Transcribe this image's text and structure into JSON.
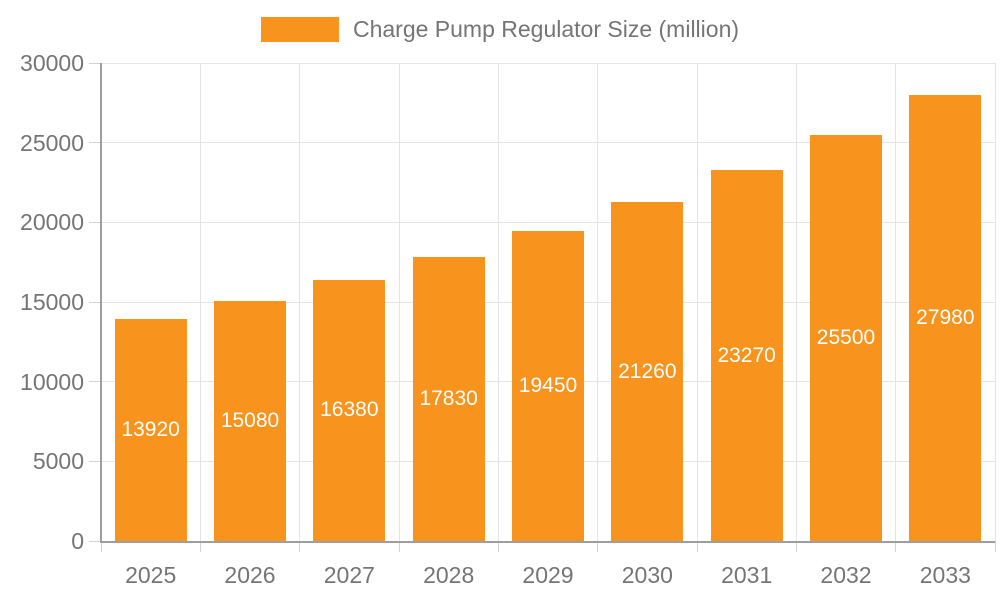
{
  "legend": {
    "label": "Charge Pump Regulator Size (million)"
  },
  "chart_data": {
    "type": "bar",
    "title": "Charge Pump Regulator Size (million)",
    "categories": [
      "2025",
      "2026",
      "2027",
      "2028",
      "2029",
      "2030",
      "2031",
      "2032",
      "2033"
    ],
    "series": [
      {
        "name": "Charge Pump Regulator Size (million)",
        "values": [
          13920,
          15080,
          16380,
          17830,
          19450,
          21260,
          23270,
          25500,
          27980
        ]
      }
    ],
    "xlabel": "",
    "ylabel": "",
    "ylim": [
      0,
      30000
    ],
    "y_ticks": [
      0,
      5000,
      10000,
      15000,
      20000,
      25000,
      30000
    ],
    "grid": true,
    "legend_position": "top",
    "bar_labels_inside": true,
    "colors": {
      "bar": "#f8941d",
      "bar_label_text": "#ffffff",
      "axis_line": "#9e9e9e",
      "grid_line": "#e4e4e4",
      "tick": "#d2d2d2",
      "axis_text": "#757575"
    }
  }
}
